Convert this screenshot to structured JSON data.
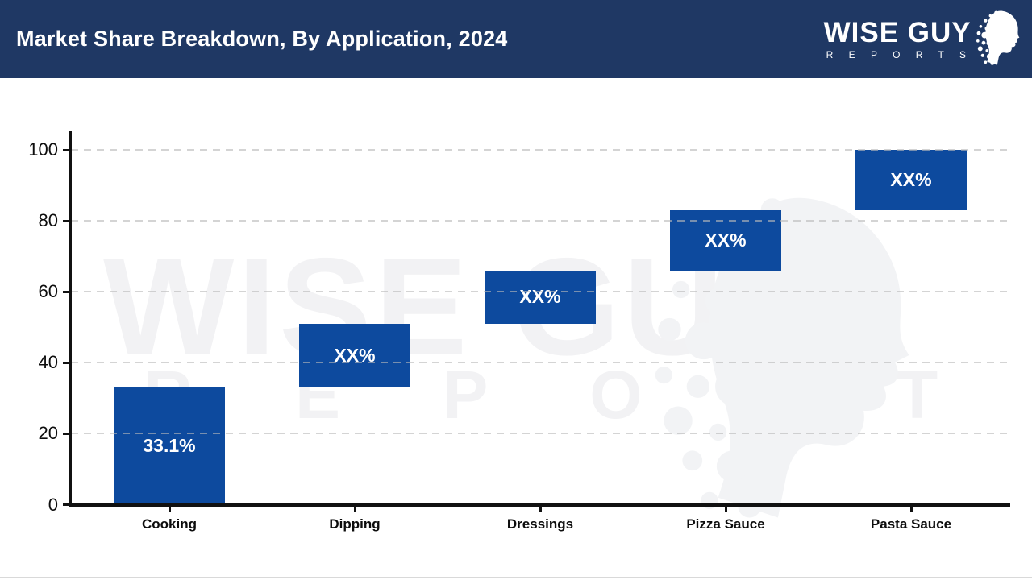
{
  "header": {
    "title": "Market Share Breakdown, By Application, 2024",
    "bg_color": "#1f3864",
    "logo": {
      "line1": "WISE GUY",
      "line2": "R E P O R T S",
      "head_icon": "dotted-face-profile"
    }
  },
  "watermark": {
    "line1": "WISE GUY",
    "line2": "R E P O R T S",
    "head_icon": "dotted-face-profile",
    "color": "#f2f2f4"
  },
  "chart_data": {
    "type": "bar",
    "subtype": "waterfall",
    "title": "Market Share Breakdown, By Application, 2024",
    "xlabel": "",
    "ylabel": "",
    "categories": [
      "Cooking",
      "Dipping",
      "Dressings",
      "Pizza Sauce",
      "Pasta Sauce"
    ],
    "segments": [
      {
        "category": "Cooking",
        "start": 0,
        "end": 33.1,
        "label": "33.1%"
      },
      {
        "category": "Dipping",
        "start": 33.1,
        "end": 51,
        "label": "XX%"
      },
      {
        "category": "Dressings",
        "start": 51,
        "end": 66,
        "label": "XX%"
      },
      {
        "category": "Pizza Sauce",
        "start": 66,
        "end": 83,
        "label": "XX%"
      },
      {
        "category": "Pasta Sauce",
        "start": 83,
        "end": 100,
        "label": "XX%"
      }
    ],
    "y_ticks": [
      0,
      20,
      40,
      60,
      80,
      100
    ],
    "ylim": [
      0,
      105
    ],
    "grid": "horizontal-dashed",
    "legend": "none",
    "bar_color": "#0d4a9e",
    "bar_label_color": "#ffffff",
    "gridline_color": "#dcdcdc",
    "axis_color": "#111111"
  }
}
